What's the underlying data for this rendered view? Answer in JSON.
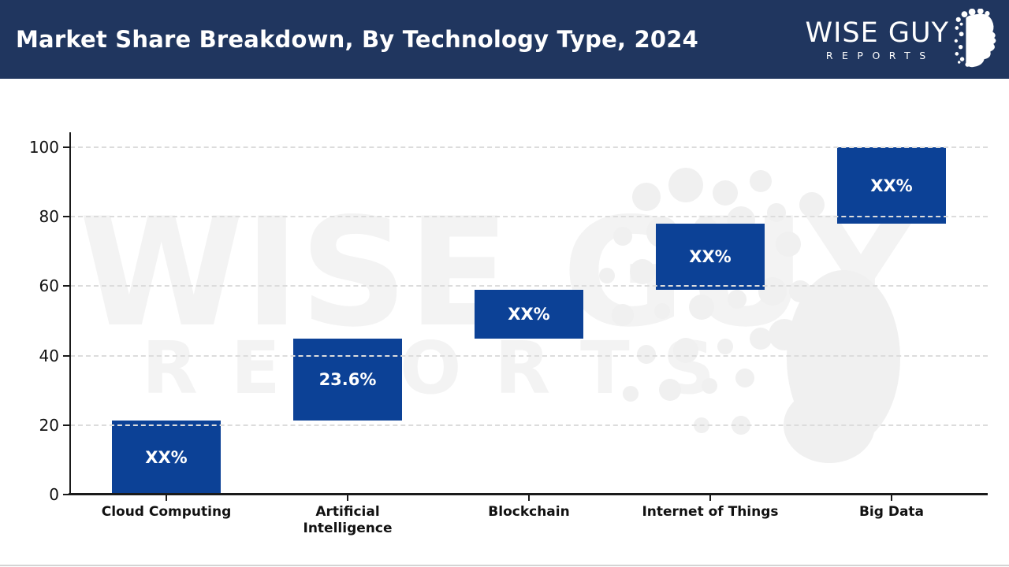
{
  "header": {
    "title": "Market Share Breakdown, By Technology Type, 2024",
    "logo": {
      "line1": "WISE GUY",
      "line2": "REPORTS",
      "icon": "dotted-face-profile"
    },
    "background_color": "#20365f"
  },
  "watermark": {
    "line1": "WISE GUY",
    "line2": "REPORTS",
    "icon": "dotted-face-profile-watermark"
  },
  "chart_data": {
    "type": "bar",
    "subtype": "waterfall",
    "title": "Market Share Breakdown, By Technology Type, 2024",
    "categories": [
      "Cloud Computing",
      "Artificial Intelligence",
      "Blockchain",
      "Internet of Things",
      "Big Data"
    ],
    "series": [
      {
        "name": "Cloud Computing",
        "start": 0,
        "end": 21.4,
        "label": "XX%"
      },
      {
        "name": "Artificial Intelligence",
        "start": 21.4,
        "end": 45.0,
        "label": "23.6%"
      },
      {
        "name": "Blockchain",
        "start": 45.0,
        "end": 59.0,
        "label": "XX%"
      },
      {
        "name": "Internet of Things",
        "start": 59.0,
        "end": 78.0,
        "label": "XX%"
      },
      {
        "name": "Big Data",
        "start": 78.0,
        "end": 100.0,
        "label": "XX%"
      }
    ],
    "xlabel": "",
    "ylabel": "",
    "ylim": [
      0,
      105
    ],
    "yticks": [
      0,
      20,
      40,
      60,
      80,
      100
    ],
    "grid": "horizontal-dashed",
    "legend": null,
    "bar_color": "#0c4196",
    "bar_label_color": "#ffffff",
    "axis_color": "#1a1a1a",
    "gridline_color": "#dcdcdc"
  }
}
